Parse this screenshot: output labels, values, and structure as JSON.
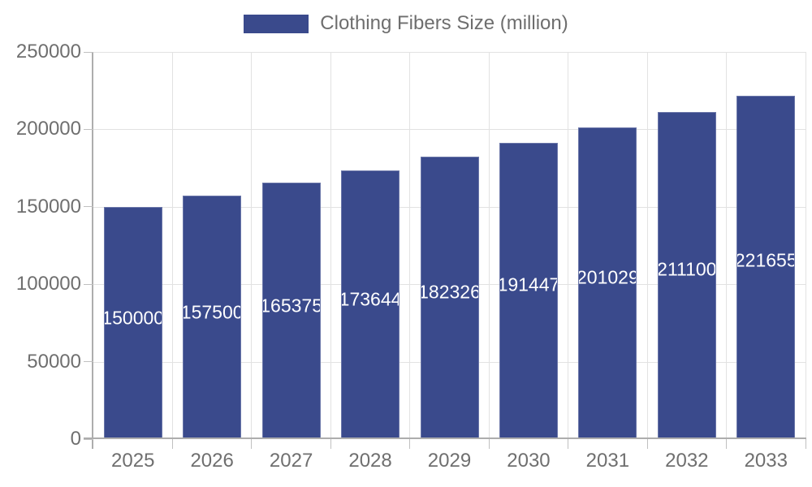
{
  "legend": {
    "label": "Clothing Fibers Size (million)",
    "swatch_color": "#3A4A8C"
  },
  "chart_data": {
    "type": "bar",
    "title": "",
    "categories": [
      "2025",
      "2026",
      "2027",
      "2028",
      "2029",
      "2030",
      "2031",
      "2032",
      "2033"
    ],
    "series": [
      {
        "name": "Clothing Fibers Size (million)",
        "values": [
          150000,
          157500,
          165375,
          173644,
          182326,
          191447,
          201029,
          211100,
          221655
        ],
        "color": "#3A4A8C"
      }
    ],
    "value_labels": [
      "150000",
      "157500",
      "165375",
      "173644",
      "182326",
      "191447",
      "201029",
      "211100",
      "221655"
    ],
    "value_label_color": "#FFFFFF",
    "xlabel": "",
    "ylabel": "",
    "ylim": [
      0,
      250000
    ],
    "yticks": [
      0,
      50000,
      100000,
      150000,
      200000,
      250000
    ],
    "ytick_labels": [
      "0",
      "50000",
      "100000",
      "150000",
      "200000",
      "250000"
    ],
    "grid": true,
    "legend_position": "top-center",
    "colors": {
      "axis_line": "#ADADAD",
      "grid_line": "#E2E2E2",
      "tick_mark": "#C0C0C0",
      "tick_label": "#6F6F6F"
    }
  }
}
